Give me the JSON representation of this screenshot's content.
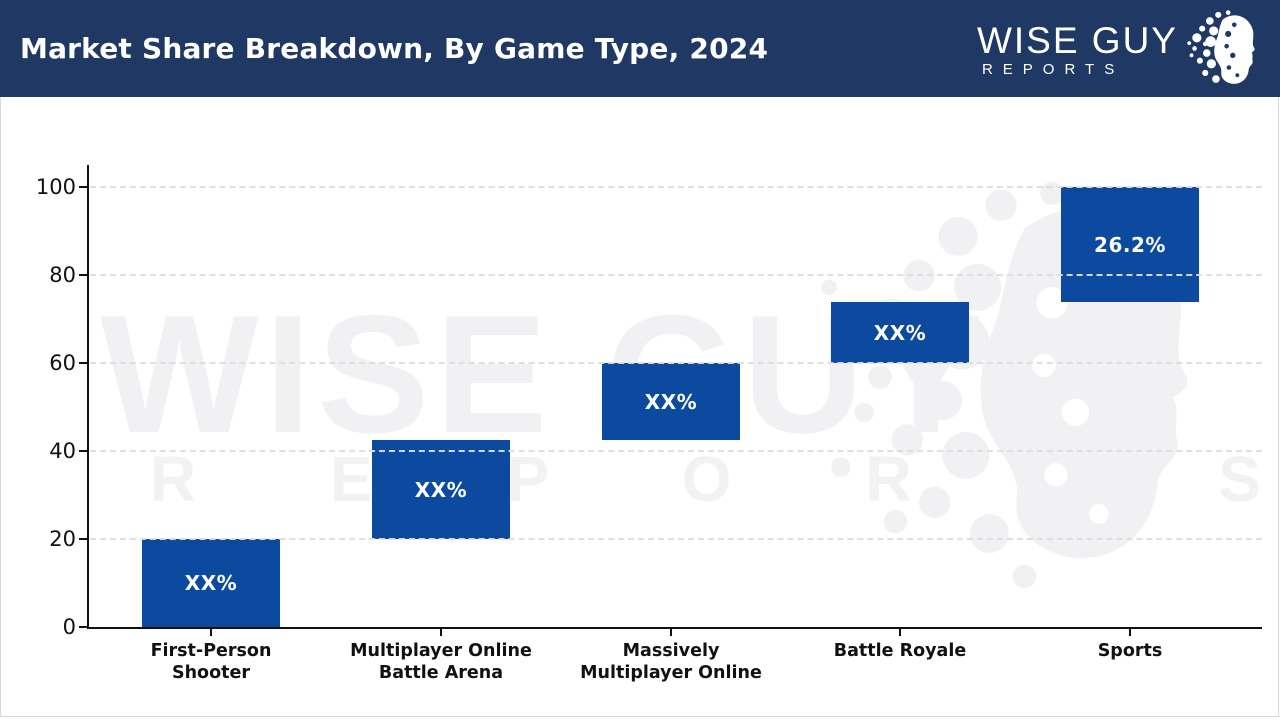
{
  "header": {
    "title": "Market Share Breakdown, By Game Type, 2024",
    "logo": {
      "line1": "WISE GUY",
      "line2": "REPORTS"
    }
  },
  "watermark": {
    "line1": "WISE GUY",
    "line2": "R E P O R T S"
  },
  "colors": {
    "header_bg": "#1F3864",
    "bar_blue": "#0B4A9E",
    "grid_gray": "#DEDEDE",
    "axis_black": "#111111",
    "watermark_gray": "#F1F1F4"
  },
  "chart_data": {
    "type": "bar",
    "variant": "waterfall",
    "title": "Market Share Breakdown, By Game Type, 2024",
    "categories": [
      "First-Person Shooter",
      "Multiplayer Online Battle Arena",
      "Massively Multiplayer Online",
      "Battle Royale",
      "Sports"
    ],
    "category_lines": [
      [
        "First-Person",
        "Shooter"
      ],
      [
        "Multiplayer Online",
        "Battle Arena"
      ],
      [
        "Massively",
        "Multiplayer Online"
      ],
      [
        "Battle Royale"
      ],
      [
        "Sports"
      ]
    ],
    "segments": [
      {
        "category": "First-Person Shooter",
        "start": 0,
        "end": 20,
        "value_pct": 20.0,
        "label": "XX%"
      },
      {
        "category": "Multiplayer Online Battle Arena",
        "start": 20,
        "end": 42.4,
        "value_pct": 22.4,
        "label": "XX%"
      },
      {
        "category": "Massively Multiplayer Online",
        "start": 42.4,
        "end": 59.9,
        "value_pct": 17.5,
        "label": "XX%"
      },
      {
        "category": "Battle Royale",
        "start": 59.9,
        "end": 73.8,
        "value_pct": 13.9,
        "label": "XX%"
      },
      {
        "category": "Sports",
        "start": 73.8,
        "end": 100,
        "value_pct": 26.2,
        "label": "26.2%"
      }
    ],
    "yticks": [
      0,
      20,
      40,
      60,
      80,
      100
    ],
    "ylim": [
      0,
      105
    ],
    "xlabel": "",
    "ylabel": "",
    "grid": "horizontal-dashed",
    "legend": "none",
    "bar_color": "#0B4A9E"
  }
}
